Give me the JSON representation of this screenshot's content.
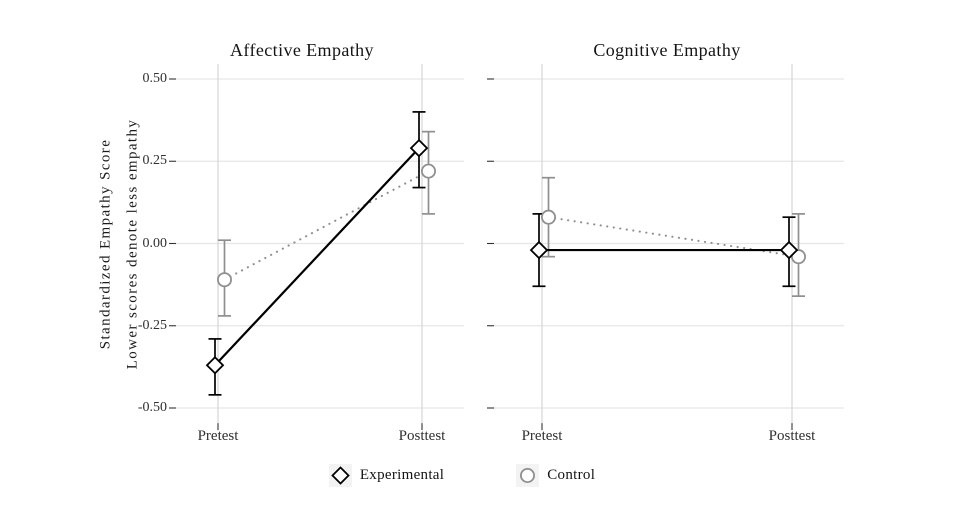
{
  "figure": {
    "background": "#ffffff"
  },
  "chart_data": {
    "type": "line",
    "title": "",
    "ylabel_line1": "Standardized Empathy Score",
    "ylabel_line2": "Lower scores denote less empathy",
    "xlabel": "",
    "x_categories": [
      "Pretest",
      "Posttest"
    ],
    "y_ticks": [
      {
        "label": "0.50",
        "value": 0.5
      },
      {
        "label": "0.25",
        "value": 0.25
      },
      {
        "label": "0.00",
        "value": 0.0
      },
      {
        "label": "-0.25",
        "value": -0.25
      },
      {
        "label": "-0.50",
        "value": -0.5
      }
    ],
    "ylim": [
      -0.546,
      0.546
    ],
    "grid": true,
    "error_bars": true,
    "legend_position": "bottom",
    "facets": [
      {
        "title": "Affective Empathy",
        "series": [
          {
            "name": "Control",
            "marker": "circle",
            "line_style": "dotted",
            "color": "#8f8f8f",
            "points": [
              {
                "x": "Pretest",
                "y": -0.11,
                "ci_low": -0.22,
                "ci_high": 0.01
              },
              {
                "x": "Posttest",
                "y": 0.22,
                "ci_low": 0.09,
                "ci_high": 0.34
              }
            ]
          },
          {
            "name": "Experimental",
            "marker": "diamond",
            "line_style": "solid",
            "color": "#000000",
            "points": [
              {
                "x": "Pretest",
                "y": -0.37,
                "ci_low": -0.46,
                "ci_high": -0.29
              },
              {
                "x": "Posttest",
                "y": 0.29,
                "ci_low": 0.17,
                "ci_high": 0.4
              }
            ]
          }
        ]
      },
      {
        "title": "Cognitive Empathy",
        "series": [
          {
            "name": "Control",
            "marker": "circle",
            "line_style": "dotted",
            "color": "#8f8f8f",
            "points": [
              {
                "x": "Pretest",
                "y": 0.08,
                "ci_low": -0.04,
                "ci_high": 0.2
              },
              {
                "x": "Posttest",
                "y": -0.04,
                "ci_low": -0.16,
                "ci_high": 0.09
              }
            ]
          },
          {
            "name": "Experimental",
            "marker": "diamond",
            "line_style": "solid",
            "color": "#000000",
            "points": [
              {
                "x": "Pretest",
                "y": -0.02,
                "ci_low": -0.13,
                "ci_high": 0.09
              },
              {
                "x": "Posttest",
                "y": -0.02,
                "ci_low": -0.13,
                "ci_high": 0.08
              }
            ]
          }
        ]
      }
    ]
  },
  "legend": {
    "items": [
      {
        "label": "Experimental",
        "marker": "diamond",
        "color": "#000000"
      },
      {
        "label": "Control",
        "marker": "circle",
        "color": "#8f8f8f"
      }
    ]
  },
  "colors": {
    "experimental": "#000000",
    "control": "#8f8f8f",
    "grid_horizontal": "#e6e6e6",
    "grid_vertical": "#d5d5d5",
    "axis_tick": "#333333"
  }
}
